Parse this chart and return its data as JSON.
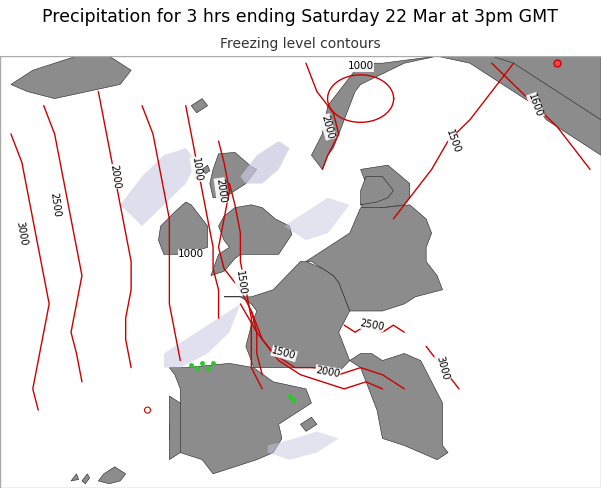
{
  "title": "Precipitation for 3 hrs ending Saturday 22 Mar at 3pm GMT",
  "subtitle": "Freezing level contours",
  "title_fontsize": 12.5,
  "subtitle_fontsize": 10,
  "title_color": "#000000",
  "subtitle_color": "#333333",
  "bg_color": "#ffffff",
  "ocean_color": "#cdd5e8",
  "land_color": "#8c8c8c",
  "land_edge_color": "#222222",
  "contour_color": "#cc0000",
  "precip_color": "#c8c8e0",
  "header_bg": "#f0f0f0"
}
